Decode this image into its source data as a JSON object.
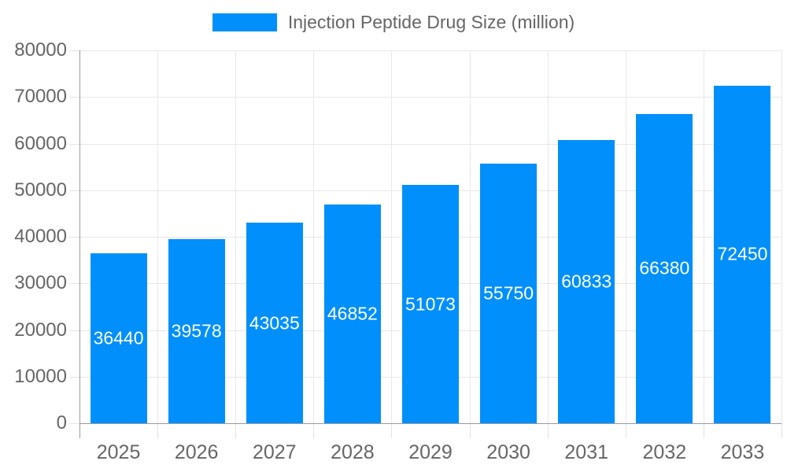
{
  "chart_data": {
    "type": "bar",
    "title": "Injection Peptide Drug Size (million)",
    "legend": {
      "label": "Injection Peptide Drug Size (million)",
      "position": "top"
    },
    "categories": [
      "2025",
      "2026",
      "2027",
      "2028",
      "2029",
      "2030",
      "2031",
      "2032",
      "2033"
    ],
    "series": [
      {
        "name": "Injection Peptide Drug Size (million)",
        "values": [
          36440,
          39578,
          43035,
          46852,
          51073,
          55750,
          60833,
          66380,
          72450
        ]
      }
    ],
    "data_labels": [
      "36440",
      "39578",
      "43035",
      "46852",
      "51073",
      "55750",
      "60833",
      "66380",
      "72450"
    ],
    "xlabel": "",
    "ylabel": "",
    "ylim": [
      0,
      80000
    ],
    "yticks": [
      0,
      10000,
      20000,
      30000,
      40000,
      50000,
      60000,
      70000,
      80000
    ],
    "grid": true,
    "colors": {
      "bar": "#008FFB",
      "bar_label_text": "#FFFFFF",
      "axis_label_text": "#666666",
      "legend_text": "#666666",
      "gridline": "#E8E8E8",
      "tick": "#E3E3E3",
      "axis_line": "#9B9B9B",
      "background": "#FFFFFF"
    }
  }
}
